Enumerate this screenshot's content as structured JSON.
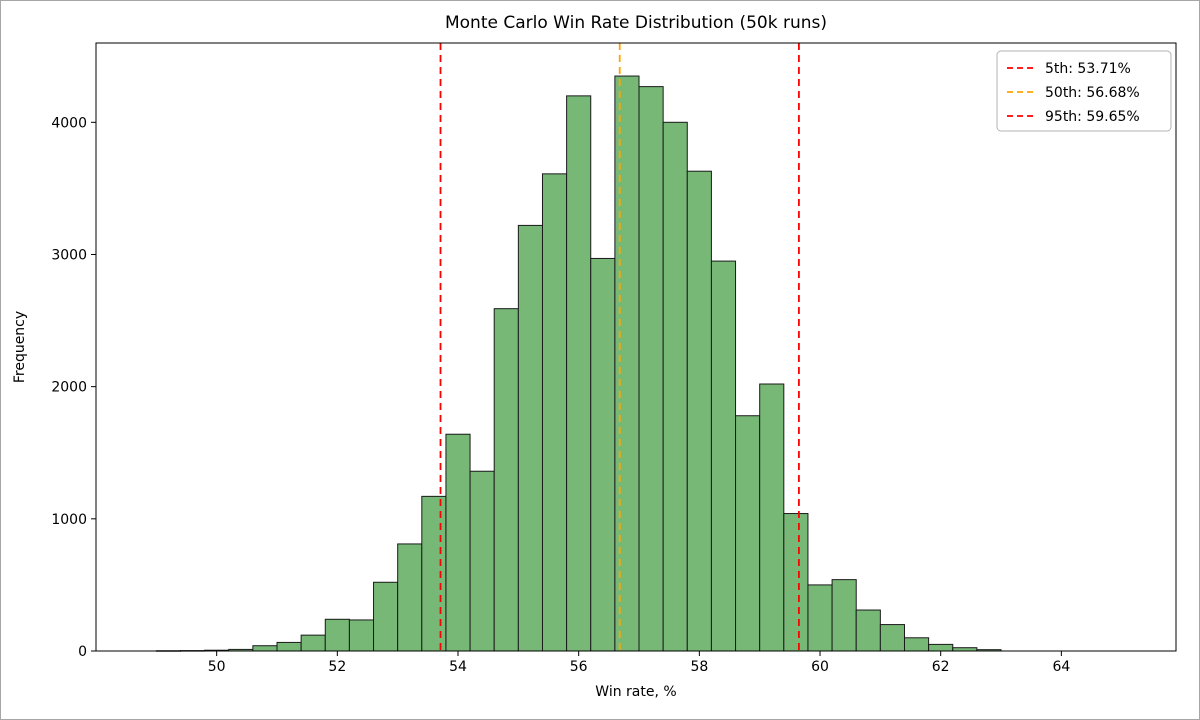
{
  "chart_data": {
    "type": "bar",
    "variant": "histogram",
    "title": "Monte Carlo Win Rate Distribution (50k runs)",
    "xlabel": "Win rate, %",
    "ylabel": "Frequency",
    "bin_start": 49.0,
    "bin_width": 0.4,
    "counts": [
      2,
      3,
      6,
      12,
      40,
      65,
      120,
      240,
      235,
      520,
      810,
      1170,
      1640,
      1360,
      2590,
      3220,
      3610,
      4200,
      2970,
      4350,
      4270,
      4000,
      3630,
      2950,
      1780,
      2020,
      1040,
      500,
      540,
      310,
      200,
      100,
      50,
      25,
      10
    ],
    "xlim": [
      48.0,
      65.9
    ],
    "ylim": [
      0,
      4600
    ],
    "xticks": [
      50,
      52,
      54,
      56,
      58,
      60,
      62,
      64
    ],
    "yticks": [
      0,
      1000,
      2000,
      3000,
      4000
    ],
    "grid": false,
    "legend_position": "top-right",
    "bar_fill": "#77b877",
    "bar_edge": "#1a1a1a",
    "axis_color": "#000000",
    "legend_border": "#b3b3b3",
    "percentile_lines": [
      {
        "label": "5th: 53.71%",
        "x": 53.71,
        "color": "#ff0000",
        "style": "dashed"
      },
      {
        "label": "50th: 56.68%",
        "x": 56.68,
        "color": "#ffa500",
        "style": "dashed"
      },
      {
        "label": "95th: 59.65%",
        "x": 59.65,
        "color": "#ff0000",
        "style": "dashed"
      }
    ]
  }
}
